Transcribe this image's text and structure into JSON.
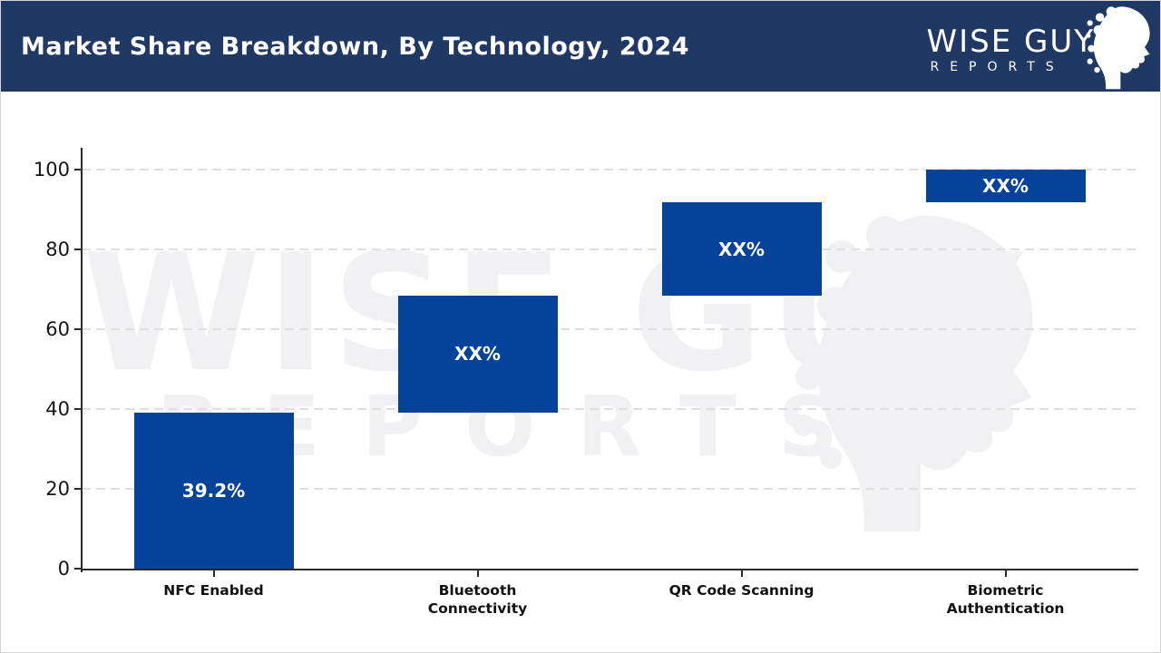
{
  "header": {
    "title": "Market Share Breakdown, By Technology, 2024",
    "brand": {
      "line1": "WISE GUY",
      "line2": "REPORTS"
    }
  },
  "watermark": {
    "line1": "WISE GUY",
    "line2": "REPORTS"
  },
  "chart_data": {
    "type": "bar",
    "subtype": "waterfall",
    "title": "Market Share Breakdown, By Technology, 2024",
    "categories": [
      "NFC Enabled",
      "Bluetooth Connectivity",
      "QR Code Scanning",
      "Biometric Authentication"
    ],
    "category_label_lines": [
      [
        "NFC Enabled"
      ],
      [
        "Bluetooth",
        "Connectivity"
      ],
      [
        "QR Code Scanning"
      ],
      [
        "Biometric",
        "Authentication"
      ]
    ],
    "series": [
      {
        "name": "Market share (%)",
        "segments": [
          {
            "category": "NFC Enabled",
            "start": 0,
            "end": 39.2,
            "label": "39.2%"
          },
          {
            "category": "Bluetooth Connectivity",
            "start": 39.2,
            "end": 68.5,
            "label": "XX%"
          },
          {
            "category": "QR Code Scanning",
            "start": 68.5,
            "end": 91.8,
            "label": "XX%"
          },
          {
            "category": "Biometric Authentication",
            "start": 91.8,
            "end": 100,
            "label": "XX%"
          }
        ]
      }
    ],
    "ylim": [
      0,
      100
    ],
    "yticks": [
      0,
      20,
      40,
      60,
      80,
      100
    ],
    "xlabel": "",
    "ylabel": "",
    "legend": null,
    "grid": "horizontal-dashed",
    "bar_color": "#05429a",
    "bar_label_color": "#ffffff"
  },
  "colors": {
    "header_bg": "#203864",
    "bar": "#05429a",
    "watermark": "#f1f1f4",
    "gridline": "#e0e0e0",
    "axis": "#2b2b2b",
    "page_border": "#d6d6d6"
  }
}
